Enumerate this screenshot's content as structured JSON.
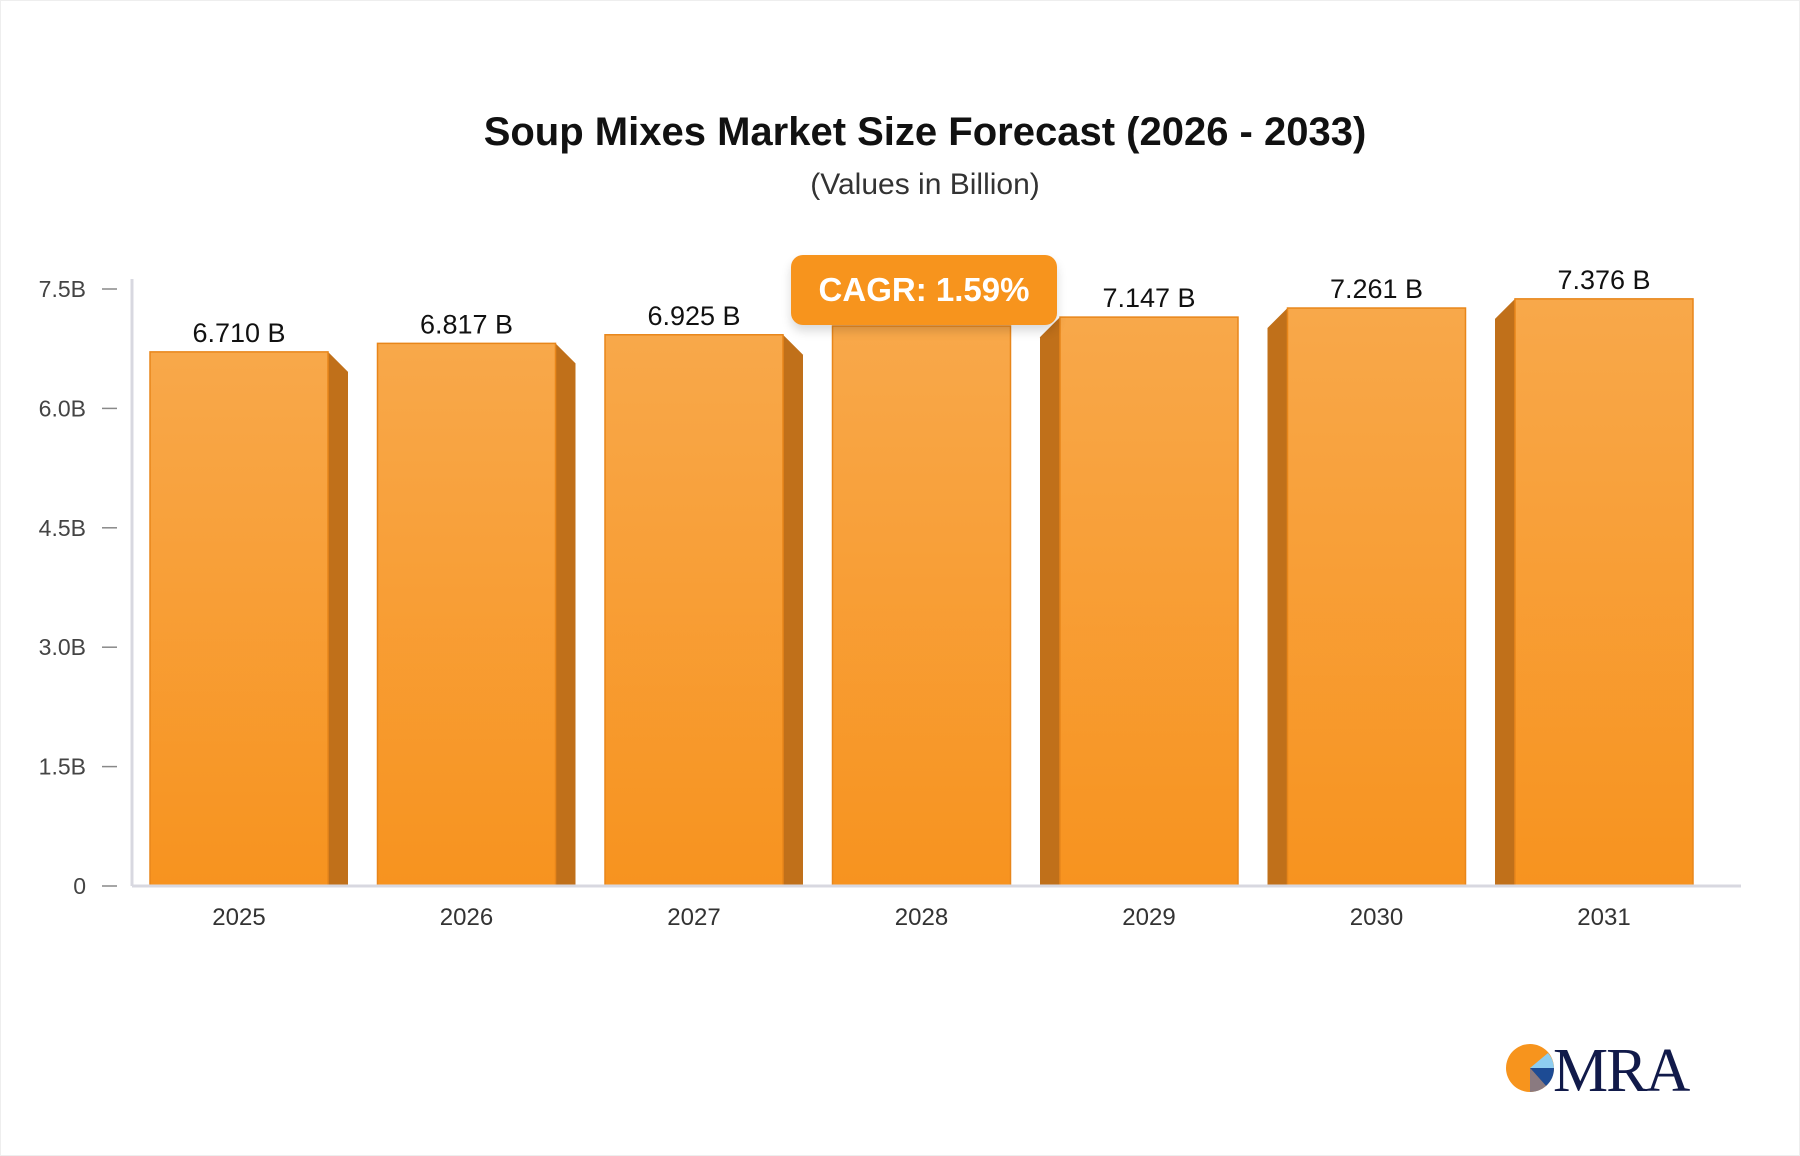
{
  "chart_data": {
    "type": "bar",
    "title": "Soup Mixes Market Size Forecast (2026 - 2033)",
    "subtitle": "(Values in Billion)",
    "categories": [
      "2025",
      "2026",
      "2027",
      "2028",
      "2029",
      "2030",
      "2031"
    ],
    "values": [
      6.71,
      6.817,
      6.925,
      7.035,
      7.147,
      7.261,
      7.376
    ],
    "data_labels": [
      "6.710 B",
      "6.817 B",
      "6.925 B",
      null,
      "7.147 B",
      "7.261 B",
      "7.376 B"
    ],
    "y_ticks": [
      {
        "value": 0,
        "label": "0"
      },
      {
        "value": 1.5,
        "label": "1.5B"
      },
      {
        "value": 3.0,
        "label": "3.0B"
      },
      {
        "value": 4.5,
        "label": "4.5B"
      },
      {
        "value": 6.0,
        "label": "6.0B"
      },
      {
        "value": 7.5,
        "label": "7.5B"
      }
    ],
    "ylim": [
      0,
      7.5
    ],
    "grid": false,
    "bar_color": "#f7941d",
    "annotation": "CAGR: 1.59%"
  },
  "logo": {
    "text": "MRA"
  }
}
